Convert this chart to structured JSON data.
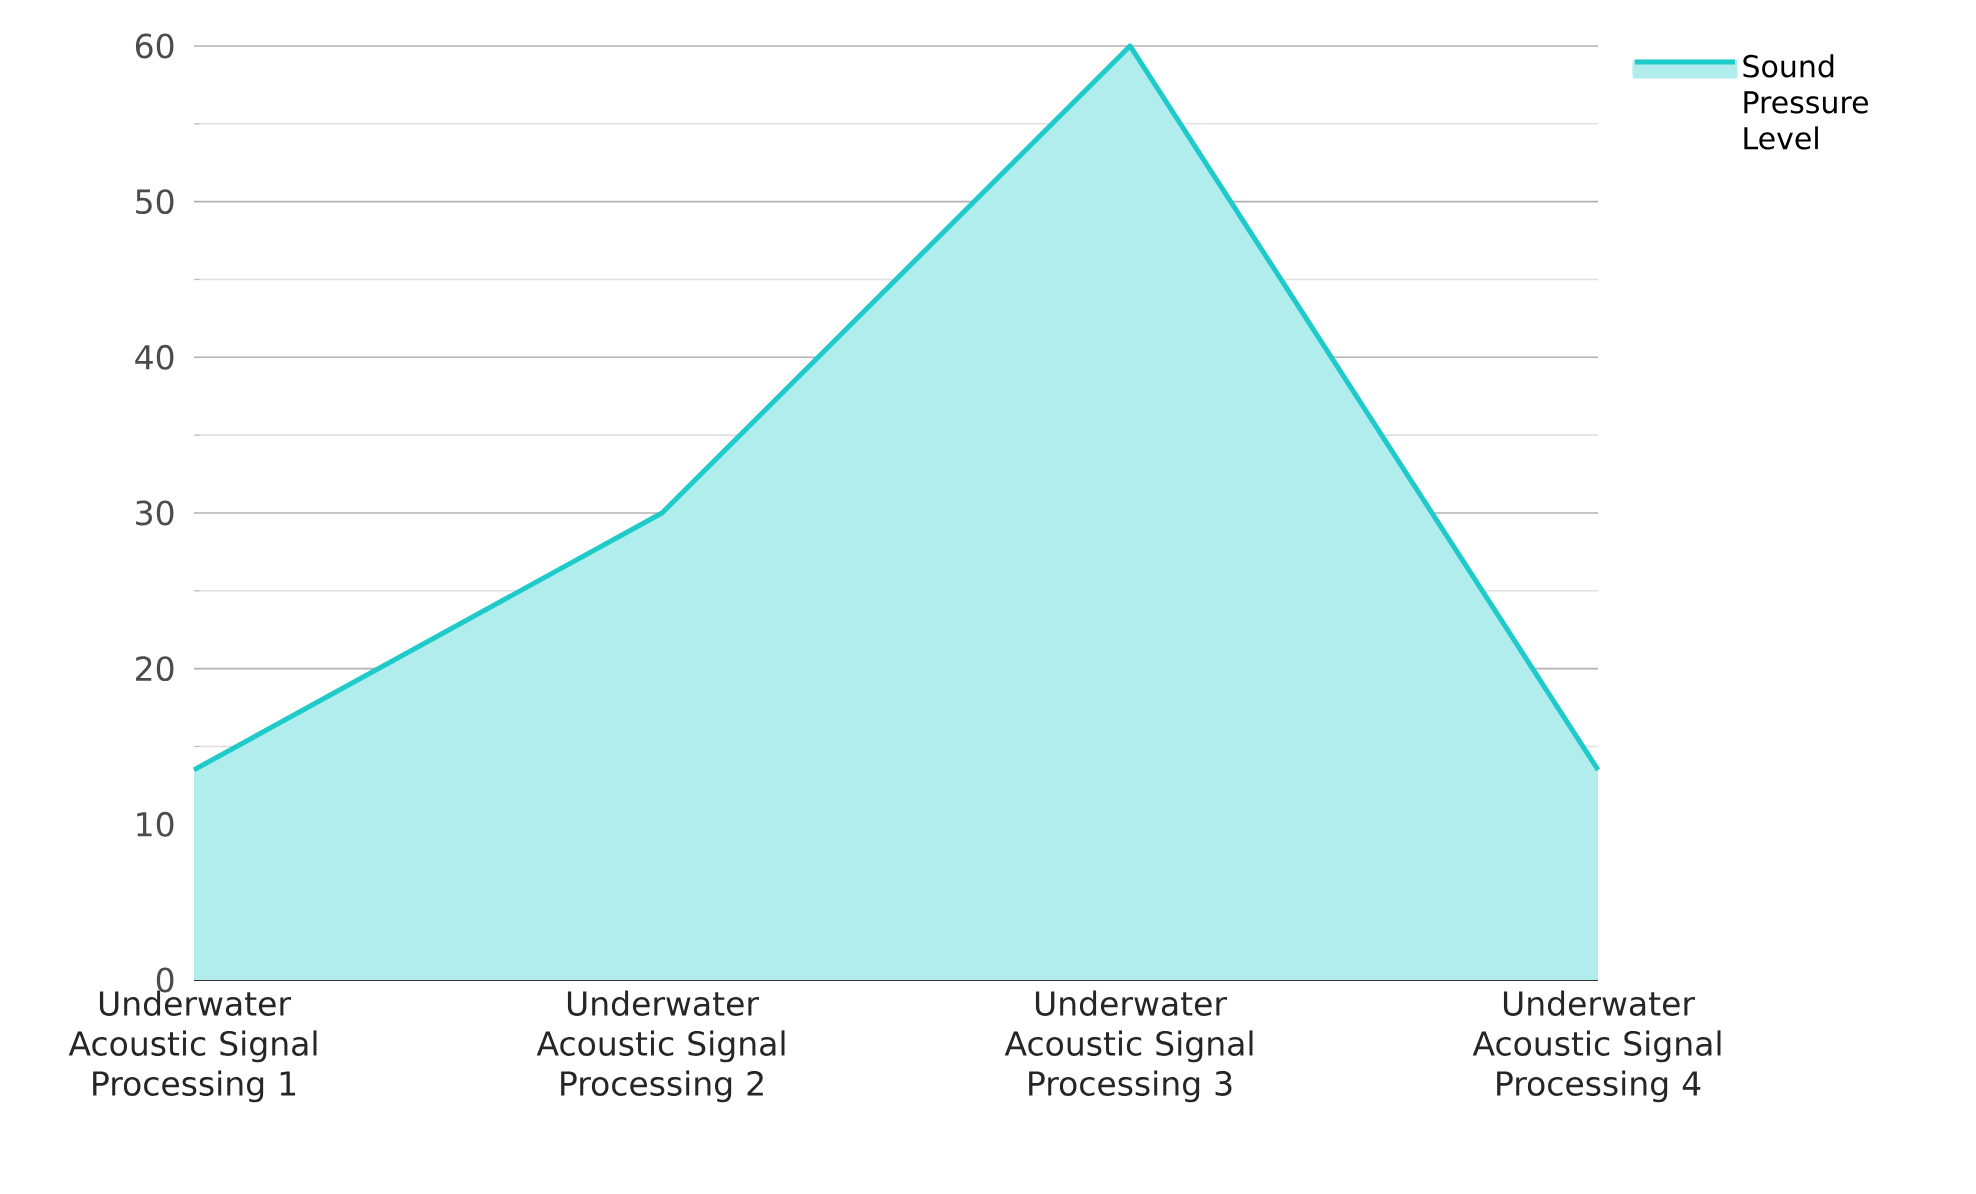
{
  "chart_data": {
    "type": "area",
    "categories": [
      "Underwater Acoustic Signal Processing 1",
      "Underwater Acoustic Signal Processing 2",
      "Underwater Acoustic Signal Processing 3",
      "Underwater Acoustic Signal Processing 4"
    ],
    "series": [
      {
        "name": "Sound Pressure Level",
        "color": "#1ecbca",
        "values": [
          13.5,
          30,
          60,
          13.5
        ]
      }
    ],
    "ylim": [
      0,
      60
    ],
    "yticks": [
      0,
      10,
      20,
      30,
      40,
      50,
      60
    ],
    "grid": "y",
    "legend": "top right"
  }
}
